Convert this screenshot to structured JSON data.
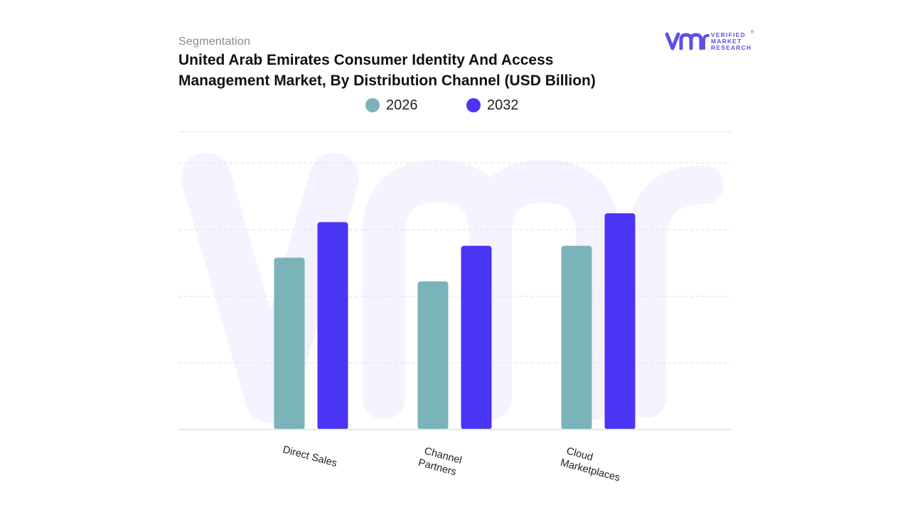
{
  "header": {
    "segment": "Segmentation",
    "title": "United Arab Emirates Consumer Identity And Access Management Market, By Distribution Channel (USD Billion)"
  },
  "logo": {
    "line1": "VERIFIED",
    "line2": "MARKET",
    "line3": "RESEARCH",
    "mark": "vmr-logo-icon",
    "registered": "®"
  },
  "colors": {
    "series_2026": "#7ab3b8",
    "series_2032": "#4b35f5",
    "brand": "#5b50e6"
  },
  "chart_data": {
    "type": "bar",
    "title": "United Arab Emirates Consumer Identity And Access Management Market, By Distribution Channel (USD Billion)",
    "xlabel": "",
    "ylabel": "",
    "categories": [
      "Direct Sales",
      "Channel Partners",
      "Cloud Marketplaces"
    ],
    "category_lines": [
      [
        "Direct Sales"
      ],
      [
        "Channel",
        "Partners"
      ],
      [
        "Cloud",
        "Marketplaces"
      ]
    ],
    "series": [
      {
        "name": "2026",
        "values": [
          2.9,
          2.5,
          3.1
        ]
      },
      {
        "name": "2032",
        "values": [
          3.5,
          3.1,
          3.65
        ]
      }
    ],
    "ylim": [
      0,
      4.5
    ],
    "grid": true,
    "legend_position": "top"
  }
}
